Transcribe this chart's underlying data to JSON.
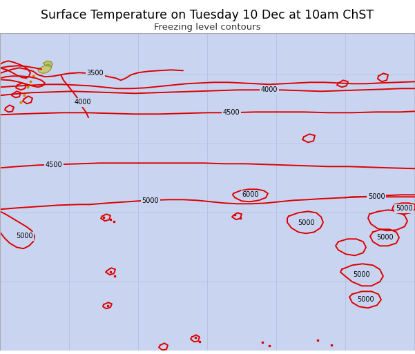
{
  "title": "Surface Temperature on Tuesday 10 Dec at 10am ChST",
  "subtitle": "Freezing level contours",
  "title_fontsize": 12.5,
  "subtitle_fontsize": 9.5,
  "bg_color": "#c9d5f0",
  "map_bg_color": "#c9d5f0",
  "header_bg": "#ffffff",
  "border_color": "#aaaaaa",
  "contour_color": "#dd0000",
  "contour_linewidth": 1.4,
  "grid_color": "#b0bcdc",
  "island_fill": "#c8c87a",
  "island_outline": "#888844",
  "figsize": [
    6.01,
    5.13
  ],
  "dpi": 100
}
